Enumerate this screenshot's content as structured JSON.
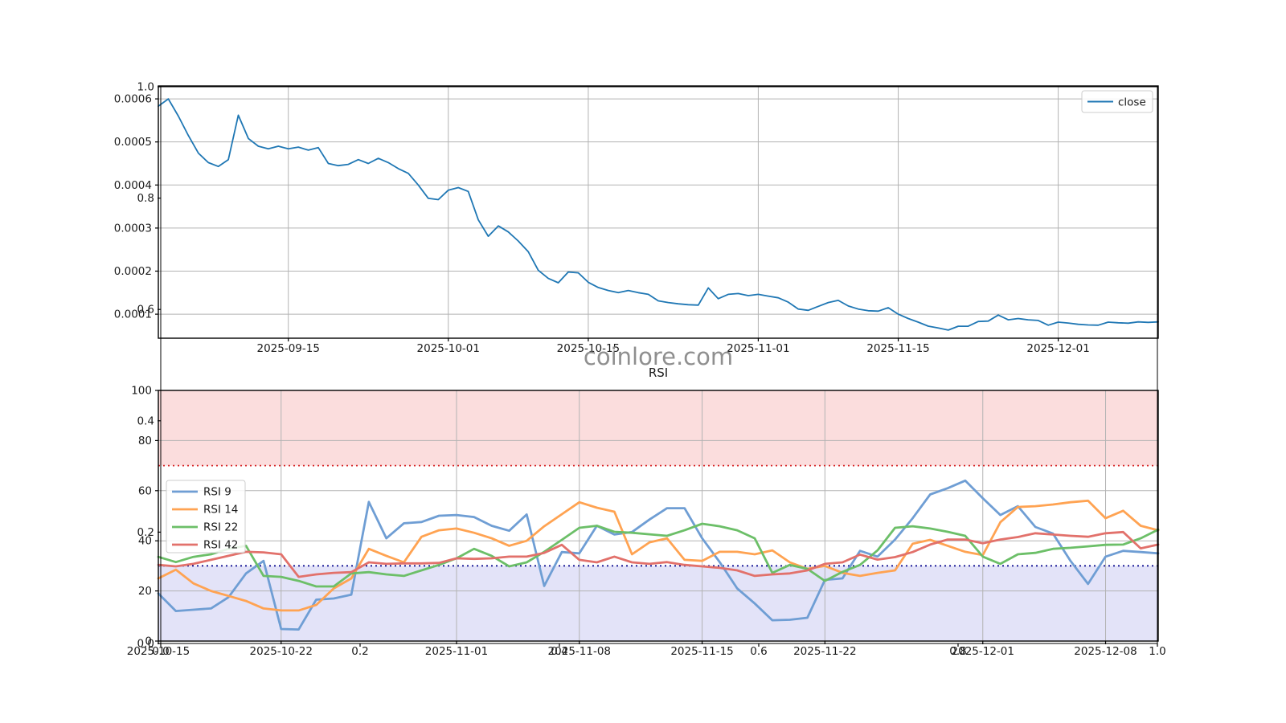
{
  "watermark": {
    "text": "coinlore.com",
    "color": "#8f8f8f"
  },
  "colors": {
    "close_line": "#1f77b4",
    "rsi9": "#6f9ed4",
    "rsi14": "#ffa352",
    "rsi22": "#6cbf68",
    "rsi42": "#e2716b",
    "overbought_band": "#fbdddd",
    "oversold_band": "#e3e3f8",
    "overbought_line": "#d62728",
    "oversold_line": "#00008b",
    "grid": "#b3b3b3",
    "spine": "#000000"
  },
  "overlay_axis": {
    "x_tick_labels": [
      "0.0",
      "0.2",
      "0.4",
      "0.6",
      "0.8",
      "1.0"
    ],
    "y_tick_labels": [
      "1.0",
      "0.8",
      "0.6",
      "0.4",
      "0.2",
      "0.0"
    ]
  },
  "chart_data": [
    {
      "type": "line",
      "title": "",
      "legend": [
        {
          "label": "close",
          "color": "#1f77b4"
        }
      ],
      "legend_position": "upper right",
      "grid": true,
      "xlabel": "",
      "ylabel": "",
      "x_tick_labels": [
        "2025-09-15",
        "2025-10-01",
        "2025-10-15",
        "2025-11-01",
        "2025-11-15",
        "2025-12-01"
      ],
      "y_tick_labels": [
        "0.0006",
        "0.0005",
        "0.0004",
        "0.0003",
        "0.0002",
        "0.0001"
      ],
      "ylim": [
        4.42e-05,
        0.00063
      ],
      "x_start_date": "2025-09-02",
      "x_freq": "daily",
      "series": [
        {
          "name": "close",
          "values": [
            0.000583,
            0.0006,
            0.00056,
            0.000515,
            0.000474,
            0.000452,
            0.000443,
            0.000459,
            0.000562,
            0.000508,
            0.00049,
            0.000484,
            0.00049,
            0.000484,
            0.000488,
            0.000481,
            0.000487,
            0.00045,
            0.000445,
            0.000448,
            0.000459,
            0.00045,
            0.000462,
            0.000452,
            0.000438,
            0.000427,
            0.0004,
            0.000369,
            0.000366,
            0.000388,
            0.000394,
            0.000385,
            0.000319,
            0.000281,
            0.000305,
            0.000291,
            0.00027,
            0.000245,
            0.000202,
            0.000183,
            0.000173,
            0.000198,
            0.000196,
            0.000174,
            0.000162,
            0.000155,
            0.00015,
            0.000155,
            0.00015,
            0.000146,
            0.000131,
            0.000127,
            0.000124,
            0.000122,
            0.000121,
            0.000161,
            0.000136,
            0.000146,
            0.000148,
            0.000143,
            0.000146,
            0.000142,
            0.000138,
            0.000128,
            0.000112,
            0.000109,
            0.000118,
            0.000127,
            0.000132,
            0.000119,
            0.000112,
            0.000108,
            0.000107,
            0.000115,
            0.0001,
            9e-05,
            8.15e-05,
            7.22e-05,
            6.8e-05,
            6.3e-05,
            7.2e-05,
            7.2e-05,
            8.3e-05,
            8.4e-05,
            9.8e-05,
            8.7e-05,
            9e-05,
            8.7e-05,
            8.55e-05,
            7.45e-05,
            8.15e-05,
            7.95e-05,
            7.65e-05,
            7.5e-05,
            7.45e-05,
            8.15e-05,
            8e-05,
            7.9e-05,
            8.2e-05,
            8.1e-05,
            8.2e-05
          ]
        }
      ]
    },
    {
      "type": "line",
      "title": "RSI",
      "legend": [
        {
          "label": "RSI 9",
          "color": "#6f9ed4"
        },
        {
          "label": "RSI 14",
          "color": "#ffa352"
        },
        {
          "label": "RSI 22",
          "color": "#6cbf68"
        },
        {
          "label": "RSI 42",
          "color": "#e2716b"
        }
      ],
      "legend_position": "upper left",
      "grid": true,
      "overbought_level": 70,
      "oversold_level": 30,
      "x_tick_labels": [
        "2025-10-15",
        "2025-10-22",
        "2025-11-01",
        "2025-11-08",
        "2025-11-15",
        "2025-11-22",
        "2025-12-01",
        "2025-12-08"
      ],
      "y_tick_labels": [
        "100",
        "80",
        "60",
        "40",
        "20",
        "0"
      ],
      "ylim": [
        0,
        100
      ],
      "x_start_date": "2025-10-15",
      "x_freq": "daily",
      "series": [
        {
          "name": "RSI 9",
          "values": [
            19,
            12,
            12.5,
            13,
            17.5,
            27,
            32,
            4.8,
            4.6,
            16.5,
            17,
            18.5,
            55.5,
            41,
            47,
            47.5,
            50,
            50.3,
            49.5,
            46,
            44,
            50.5,
            22,
            35.5,
            35,
            46,
            42.5,
            43.5,
            48.5,
            53,
            53,
            41,
            31.5,
            21,
            15,
            8.3,
            8.5,
            9.3,
            24.4,
            25,
            36,
            33.7,
            40.5,
            49,
            58.5,
            61,
            64,
            57,
            50.3,
            53.8,
            45.5,
            42.9,
            32,
            22.8,
            33.7,
            36,
            35.5,
            35
          ]
        },
        {
          "name": "RSI 14",
          "values": [
            25,
            28.5,
            23,
            20,
            18,
            16,
            13,
            12.2,
            12.2,
            14.4,
            21,
            25,
            36.8,
            34,
            31.4,
            41.6,
            44.2,
            44.9,
            43.2,
            41,
            38,
            40,
            45.8,
            50.6,
            55.4,
            53.2,
            51.6,
            34.6,
            39.4,
            41,
            32.4,
            32,
            35.6,
            35.6,
            34.6,
            36.2,
            31.4,
            28.8,
            30,
            27.2,
            26,
            27.2,
            28.2,
            38.8,
            40.4,
            38,
            35.6,
            34.3,
            47.4,
            53.5,
            53.8,
            54.5,
            55.4,
            56,
            49,
            52,
            46,
            44.2
          ]
        },
        {
          "name": "RSI 22",
          "values": [
            33.6,
            31.5,
            33.6,
            34.6,
            36.8,
            38,
            26,
            25.6,
            24,
            21.8,
            21.8,
            27,
            27.5,
            26.6,
            26,
            28.2,
            30.4,
            33,
            36.8,
            34,
            29.8,
            31.4,
            35.6,
            40.4,
            45.2,
            46,
            43.6,
            43.2,
            42.6,
            42,
            44.2,
            46.8,
            45.8,
            44.2,
            41,
            27.2,
            30.4,
            28.8,
            24,
            27.6,
            30.4,
            36.2,
            45.2,
            45.8,
            44.9,
            43.6,
            42,
            33.7,
            30.8,
            34.6,
            35.2,
            36.8,
            37.2,
            37.8,
            38.4,
            38.5,
            41,
            44.5
          ]
        },
        {
          "name": "RSI 42",
          "values": [
            30.4,
            29.8,
            30.8,
            32.4,
            34,
            35.6,
            35.4,
            34.6,
            25.6,
            26.6,
            27.2,
            27.5,
            31.4,
            30.8,
            31,
            31,
            31.2,
            33,
            32.8,
            33,
            33.7,
            33.7,
            35.2,
            38.4,
            32.4,
            31.4,
            33.7,
            31.4,
            30.8,
            31.5,
            30.4,
            29.8,
            29.2,
            28.2,
            26,
            26.6,
            27,
            28.2,
            30.8,
            31.4,
            34.5,
            32.5,
            33.5,
            35.5,
            38.5,
            40.5,
            40.5,
            39,
            40.5,
            41.5,
            43,
            42.5,
            42,
            41.6,
            43,
            43.5,
            37,
            38.5
          ]
        }
      ]
    }
  ]
}
